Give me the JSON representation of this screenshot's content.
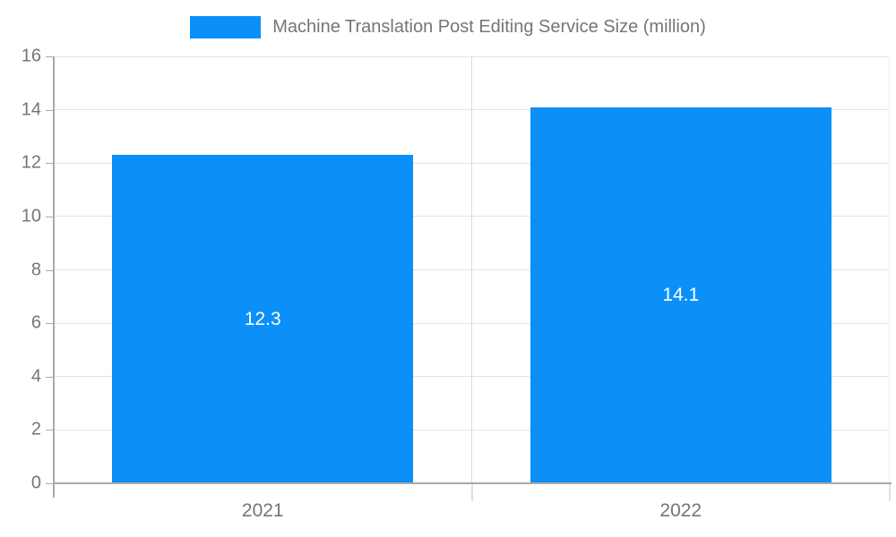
{
  "legend": {
    "label": "Machine Translation Post Editing Service Size (million)"
  },
  "chart_data": {
    "type": "bar",
    "title": "Machine Translation Post Editing Service Size (million)",
    "categories": [
      "2021",
      "2022"
    ],
    "series": [
      {
        "name": "Machine Translation Post Editing Service Size (million)",
        "values": [
          12.3,
          14.1
        ]
      }
    ],
    "value_labels": [
      "12.3",
      "14.1"
    ],
    "xlabel": "",
    "ylabel": "",
    "ylim": [
      0,
      16
    ],
    "ytick_step": 2,
    "yticks": [
      0,
      2,
      4,
      6,
      8,
      10,
      12,
      14,
      16
    ],
    "grid": true,
    "legend_position": "top-center",
    "colors": {
      "bar": "#0a90f8",
      "bar_label": "#ffffff",
      "axis_text": "#757575",
      "grid_line": "#e3e3e3",
      "axis_line": "#a9a9a9"
    }
  }
}
